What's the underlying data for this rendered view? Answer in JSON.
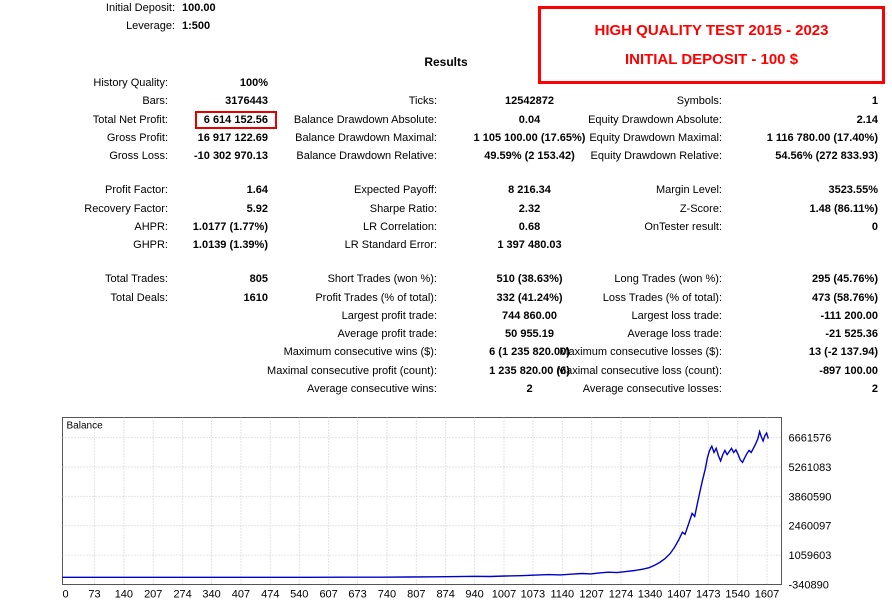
{
  "header": {
    "initial_deposit_label": "Initial Deposit:",
    "initial_deposit_value": "100.00",
    "leverage_label": "Leverage:",
    "leverage_value": "1:500",
    "results_title": "Results"
  },
  "banner": {
    "line1": "HIGH QUALITY TEST 2015 - 2023",
    "line2": "INITIAL DEPOSIT - 100 $",
    "border_color": "#ff0000",
    "text_color": "#ff0000"
  },
  "colors": {
    "highlight_box": "#e60000",
    "balance_line": "#0000cc",
    "grid": "#c8c8c8",
    "plot_border": "#555555"
  },
  "stats": {
    "rows": [
      {
        "cells": [
          "History Quality:",
          "100%",
          "",
          "",
          "",
          ""
        ]
      },
      {
        "cells": [
          "Bars:",
          "3176443",
          "Ticks:",
          "12542872",
          "Symbols:",
          "1"
        ]
      },
      {
        "cells": [
          "Total Net Profit:",
          "6 614 152.56",
          "Balance Drawdown Absolute:",
          "0.04",
          "Equity Drawdown Absolute:",
          "2.14"
        ],
        "highlight": 1
      },
      {
        "cells": [
          "Gross Profit:",
          "16 917 122.69",
          "Balance Drawdown Maximal:",
          "1 105 100.00 (17.65%)",
          "Equity Drawdown Maximal:",
          "1 116 780.00 (17.40%)"
        ]
      },
      {
        "cells": [
          "Gross Loss:",
          "-10 302 970.13",
          "Balance Drawdown Relative:",
          "49.59% (2 153.42)",
          "Equity Drawdown Relative:",
          "54.56% (272 833.93)"
        ]
      },
      {
        "spacer": true
      },
      {
        "cells": [
          "Profit Factor:",
          "1.64",
          "Expected Payoff:",
          "8 216.34",
          "Margin Level:",
          "3523.55%"
        ]
      },
      {
        "cells": [
          "Recovery Factor:",
          "5.92",
          "Sharpe Ratio:",
          "2.32",
          "Z-Score:",
          "1.48 (86.11%)"
        ]
      },
      {
        "cells": [
          "AHPR:",
          "1.0177 (1.77%)",
          "LR Correlation:",
          "0.68",
          "OnTester result:",
          "0"
        ]
      },
      {
        "cells": [
          "GHPR:",
          "1.0139 (1.39%)",
          "LR Standard Error:",
          "1 397 480.03",
          "",
          ""
        ]
      },
      {
        "spacer": true
      },
      {
        "cells": [
          "Total Trades:",
          "805",
          "Short Trades (won %):",
          "510 (38.63%)",
          "Long Trades (won %):",
          "295 (45.76%)"
        ]
      },
      {
        "cells": [
          "Total Deals:",
          "1610",
          "Profit Trades (% of total):",
          "332 (41.24%)",
          "Loss Trades (% of total):",
          "473 (58.76%)"
        ]
      },
      {
        "cells": [
          "",
          "",
          "Largest profit trade:",
          "744 860.00",
          "Largest loss trade:",
          "-111 200.00"
        ]
      },
      {
        "cells": [
          "",
          "",
          "Average profit trade:",
          "50 955.19",
          "Average loss trade:",
          "-21 525.36"
        ]
      },
      {
        "cells": [
          "",
          "",
          "Maximum consecutive wins ($):",
          "6 (1 235 820.00)",
          "Maximum consecutive losses ($):",
          "13 (-2 137.94)"
        ]
      },
      {
        "cells": [
          "",
          "",
          "Maximal consecutive profit (count):",
          "1 235 820.00 (6)",
          "Maximal consecutive loss (count):",
          "-897 100.00"
        ]
      },
      {
        "cells": [
          "",
          "",
          "Average consecutive wins:",
          "2",
          "Average consecutive losses:",
          "2"
        ]
      }
    ]
  },
  "chart_data": {
    "type": "line",
    "title": "Balance",
    "xlabel": "",
    "ylabel": "",
    "grid": true,
    "grid_color": "#c8c8c8",
    "x_range": [
      0,
      1640
    ],
    "y_range": [
      -340890,
      7620000
    ],
    "x_ticks": [
      "0",
      "73",
      "140",
      "207",
      "274",
      "340",
      "407",
      "474",
      "540",
      "607",
      "673",
      "740",
      "807",
      "874",
      "940",
      "1007",
      "1073",
      "1140",
      "1207",
      "1274",
      "1340",
      "1407",
      "1473",
      "1540",
      "1607"
    ],
    "y_ticks": [
      "6661576",
      "5261083",
      "3860590",
      "2460097",
      "1059603",
      "-340890"
    ],
    "series": [
      {
        "name": "Balance",
        "color": "#0000cc",
        "points": [
          [
            0,
            100
          ],
          [
            120,
            150
          ],
          [
            240,
            300
          ],
          [
            360,
            600
          ],
          [
            480,
            1200
          ],
          [
            560,
            2500
          ],
          [
            640,
            5000
          ],
          [
            720,
            9000
          ],
          [
            790,
            15000
          ],
          [
            850,
            24000
          ],
          [
            900,
            35000
          ],
          [
            940,
            48000
          ],
          [
            975,
            42000
          ],
          [
            1010,
            62000
          ],
          [
            1045,
            80000
          ],
          [
            1080,
            105000
          ],
          [
            1110,
            130000
          ],
          [
            1135,
            118000
          ],
          [
            1160,
            150000
          ],
          [
            1185,
            185000
          ],
          [
            1205,
            165000
          ],
          [
            1225,
            210000
          ],
          [
            1245,
            245000
          ],
          [
            1265,
            225000
          ],
          [
            1285,
            275000
          ],
          [
            1305,
            325000
          ],
          [
            1322,
            385000
          ],
          [
            1338,
            460000
          ],
          [
            1350,
            570000
          ],
          [
            1362,
            710000
          ],
          [
            1374,
            890000
          ],
          [
            1386,
            1130000
          ],
          [
            1396,
            1430000
          ],
          [
            1406,
            1800000
          ],
          [
            1414,
            2150000
          ],
          [
            1420,
            2050000
          ],
          [
            1428,
            2550000
          ],
          [
            1436,
            3050000
          ],
          [
            1442,
            2900000
          ],
          [
            1448,
            3500000
          ],
          [
            1454,
            4100000
          ],
          [
            1460,
            4650000
          ],
          [
            1466,
            5150000
          ],
          [
            1471,
            5700000
          ],
          [
            1476,
            6050000
          ],
          [
            1481,
            6250000
          ],
          [
            1486,
            5950000
          ],
          [
            1491,
            6150000
          ],
          [
            1496,
            5800000
          ],
          [
            1501,
            5550000
          ],
          [
            1506,
            5850000
          ],
          [
            1511,
            6050000
          ],
          [
            1516,
            5850000
          ],
          [
            1521,
            6000000
          ],
          [
            1526,
            6150000
          ],
          [
            1531,
            5950000
          ],
          [
            1536,
            6080000
          ],
          [
            1541,
            5860000
          ],
          [
            1546,
            5600000
          ],
          [
            1551,
            5480000
          ],
          [
            1556,
            5700000
          ],
          [
            1561,
            5900000
          ],
          [
            1566,
            6050000
          ],
          [
            1571,
            5950000
          ],
          [
            1576,
            6150000
          ],
          [
            1581,
            6350000
          ],
          [
            1586,
            6600000
          ],
          [
            1590,
            6950000
          ],
          [
            1594,
            6700000
          ],
          [
            1598,
            6500000
          ],
          [
            1602,
            6750000
          ],
          [
            1606,
            6880000
          ],
          [
            1610,
            6614253
          ]
        ]
      }
    ]
  }
}
